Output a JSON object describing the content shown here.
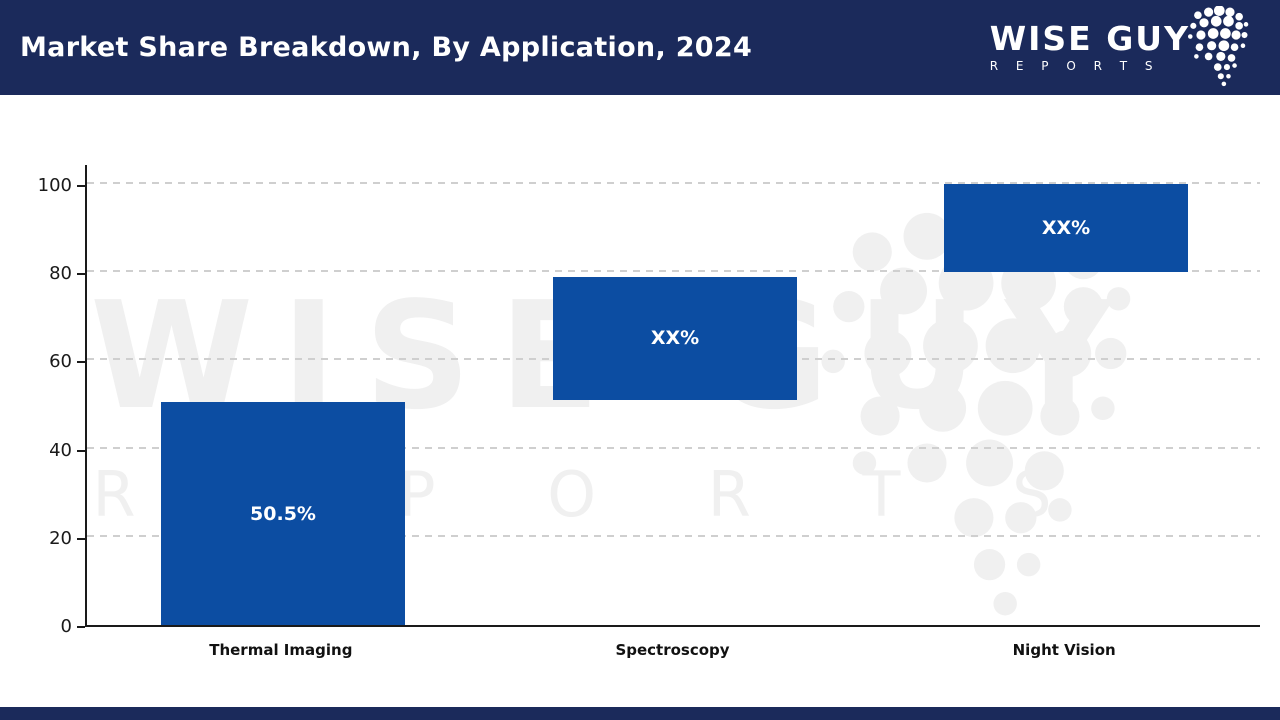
{
  "header": {
    "title": "Market Share Breakdown, By Application, 2024",
    "logo_line1": "WISE GUY",
    "logo_line2": "R E P O R T S"
  },
  "watermark": {
    "line1": "WISE GUY",
    "line2": "R E P O R T S"
  },
  "chart_data": {
    "type": "bar",
    "subtype": "waterfall-floating-bars",
    "title": "Market Share Breakdown, By Application, 2024",
    "categories": [
      "Thermal Imaging",
      "Spectroscopy",
      "Night Vision"
    ],
    "segments": [
      {
        "category": "Thermal Imaging",
        "start": 0,
        "end": 50.5,
        "label": "50.5%"
      },
      {
        "category": "Spectroscopy",
        "start": 51,
        "end": 79,
        "label": "XX%"
      },
      {
        "category": "Night Vision",
        "start": 80,
        "end": 100,
        "label": "XX%"
      }
    ],
    "values": [
      50.5,
      28,
      20
    ],
    "yticks": [
      0,
      20,
      40,
      60,
      80,
      100
    ],
    "ylim": [
      0,
      100
    ],
    "xlabel": "",
    "ylabel": "",
    "legend": "none",
    "grid": "dashed-horizontal",
    "colors": {
      "bar": "#0c4da2",
      "bar_label": "#ffffff",
      "header_bg": "#1b2a5b",
      "grid": "#cfcfcf",
      "axis": "#1a1a1a",
      "watermark": "#f0f0f0"
    }
  }
}
